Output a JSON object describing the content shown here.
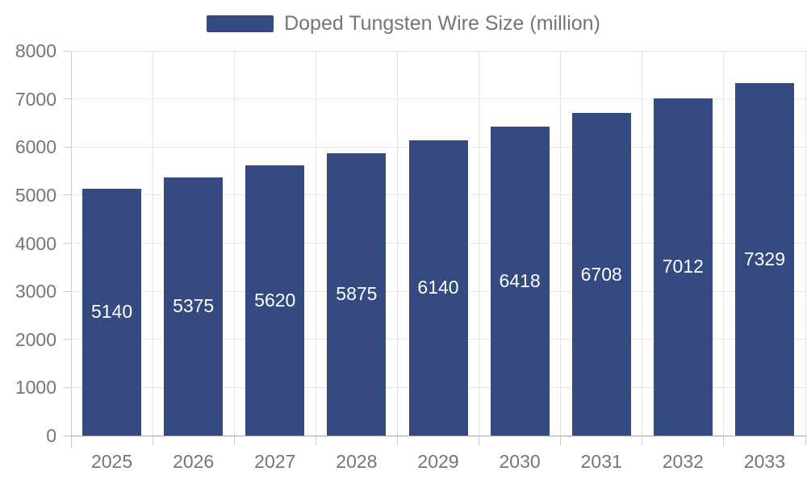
{
  "legend": {
    "label": "Doped Tungsten Wire Size (million)"
  },
  "chart_data": {
    "type": "bar",
    "title": "",
    "categories": [
      "2025",
      "2026",
      "2027",
      "2028",
      "2029",
      "2030",
      "2031",
      "2032",
      "2033"
    ],
    "series": [
      {
        "name": "Doped Tungsten Wire Size (million)",
        "values": [
          5140,
          5375,
          5620,
          5875,
          6140,
          6418,
          6708,
          7012,
          7329
        ]
      }
    ],
    "xlabel": "",
    "ylabel": "",
    "ylim": [
      0,
      8000
    ],
    "yticks": [
      0,
      1000,
      2000,
      3000,
      4000,
      5000,
      6000,
      7000,
      8000
    ],
    "grid": true,
    "vertical_grid": true,
    "legend_position": "top-center",
    "bar_label_position": "inside-center"
  },
  "colors": {
    "background": "#ffffff",
    "bar": "#364a82",
    "bar_label": "#ffffff",
    "axis_text": "#757575",
    "grid_line": "#e5e5e9",
    "y_axis_line": "#cccccc",
    "x_axis_line": "#a6a6a6"
  }
}
